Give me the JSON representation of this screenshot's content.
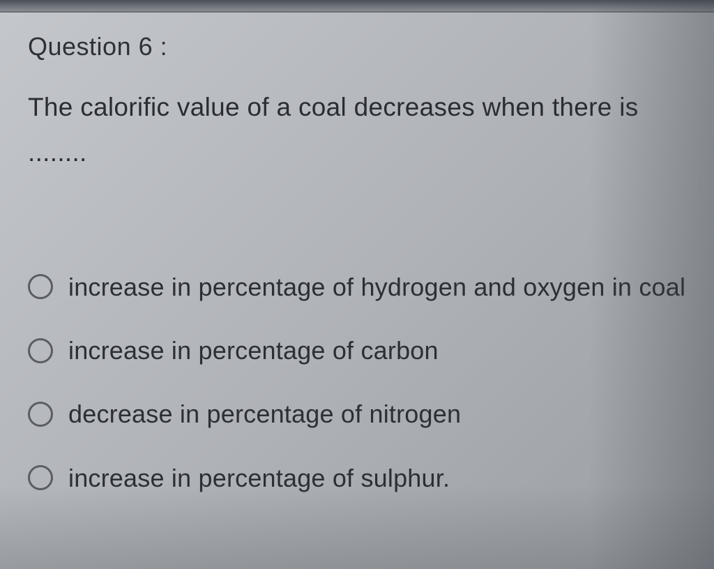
{
  "question": {
    "number_label": "Question 6 :",
    "text": "The calorific value of a coal decreases when there is ........"
  },
  "options": [
    {
      "label": "increase in percentage of hydrogen and oxygen in coal"
    },
    {
      "label": "increase in percentage of carbon"
    },
    {
      "label": "decrease in percentage of nitrogen"
    },
    {
      "label": "increase in percentage of sulphur."
    }
  ],
  "styling": {
    "background_gradient": [
      "#c4c7cb",
      "#b0b3b8",
      "#9a9ea3"
    ],
    "text_color": "#2c2f33",
    "radio_border_color": "#5a5e63",
    "question_fontsize_pt": 27,
    "option_fontsize_pt": 27,
    "font_family": "Arial"
  }
}
